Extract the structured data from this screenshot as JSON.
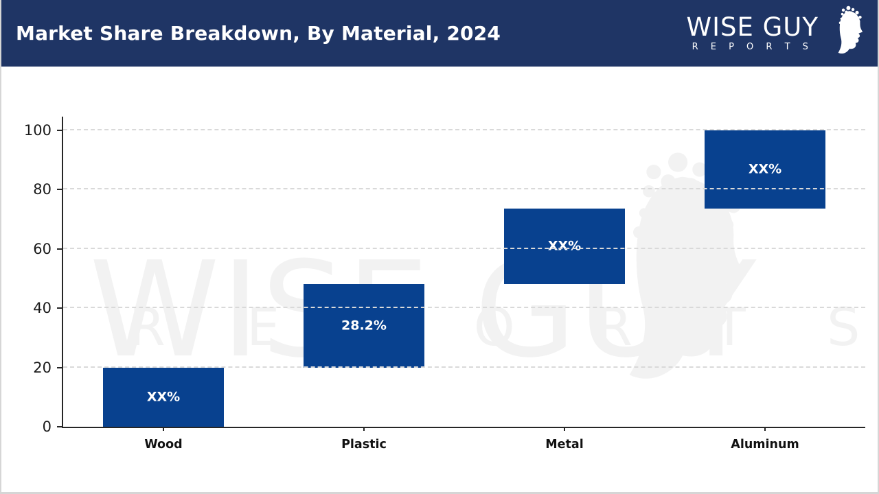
{
  "header": {
    "title": "Market Share Breakdown, By Material, 2024",
    "logo": {
      "brand": "WISE GUY",
      "sub": "R E P O R T S"
    }
  },
  "watermark": {
    "brand": "WISE GUY",
    "sub": "R E P O R T S"
  },
  "colors": {
    "header_bg": "#1f3565",
    "bar": "#08418f",
    "axis": "#262626",
    "grid": "#d9d9d9",
    "watermark": "#f2f2f2",
    "frame": "#d6d6d6"
  },
  "chart_data": {
    "type": "bar",
    "subtype": "waterfall",
    "title": "Market Share Breakdown, By Material, 2024",
    "xlabel": "",
    "ylabel": "",
    "ylim": [
      0,
      104.6
    ],
    "y_ticks": [
      0,
      20,
      40,
      60,
      80,
      100
    ],
    "grid": "horizontal-dashed",
    "legend": "none",
    "categories": [
      "Wood",
      "Plastic",
      "Metal",
      "Aluminum"
    ],
    "bars": [
      {
        "category": "Wood",
        "start": 0,
        "end": 20,
        "label": "XX%"
      },
      {
        "category": "Plastic",
        "start": 20,
        "end": 48.2,
        "label": "28.2%"
      },
      {
        "category": "Metal",
        "start": 48.2,
        "end": 73.7,
        "label": "XX%"
      },
      {
        "category": "Aluminum",
        "start": 73.7,
        "end": 100,
        "label": "XX%"
      }
    ],
    "bar_color": "#08418f",
    "bar_width_frac": 0.6
  }
}
